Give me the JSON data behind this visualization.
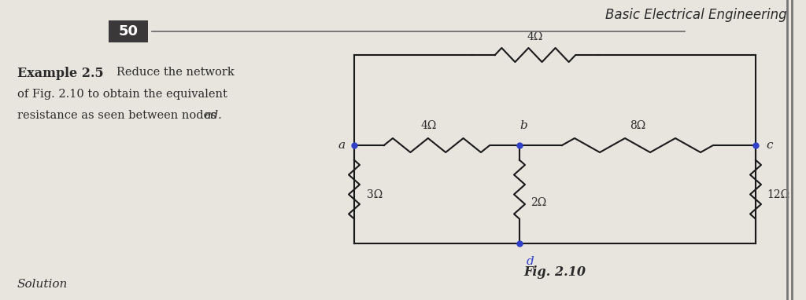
{
  "bg_color": "#e8e5df",
  "title_text": "Basic Electrical Engineering",
  "page_num": "50",
  "example_bold": "Example 2.5",
  "example_normal": "   Reduce the network",
  "example_line2": "of Fig. 2.10 to obtain the equivalent",
  "example_line3": "resistance as seen between nodes ",
  "example_italic_end": "ad.",
  "fig_label": "Fig. 2.10",
  "solution_text": "Solution",
  "R1_label": "4Ω",
  "R2_label": "4Ω",
  "R3_label": "3Ω",
  "R4_label": "8Ω",
  "R5_label": "2Ω",
  "R6_label": "12Ω",
  "text_color": "#2a2a2a",
  "line_color": "#1a1a1a",
  "node_color": "#3040c8",
  "box_bg": "#3a3838",
  "box_text": "#ffffff",
  "border_color": "#555555",
  "circuit_bg": "#e0dbd2"
}
